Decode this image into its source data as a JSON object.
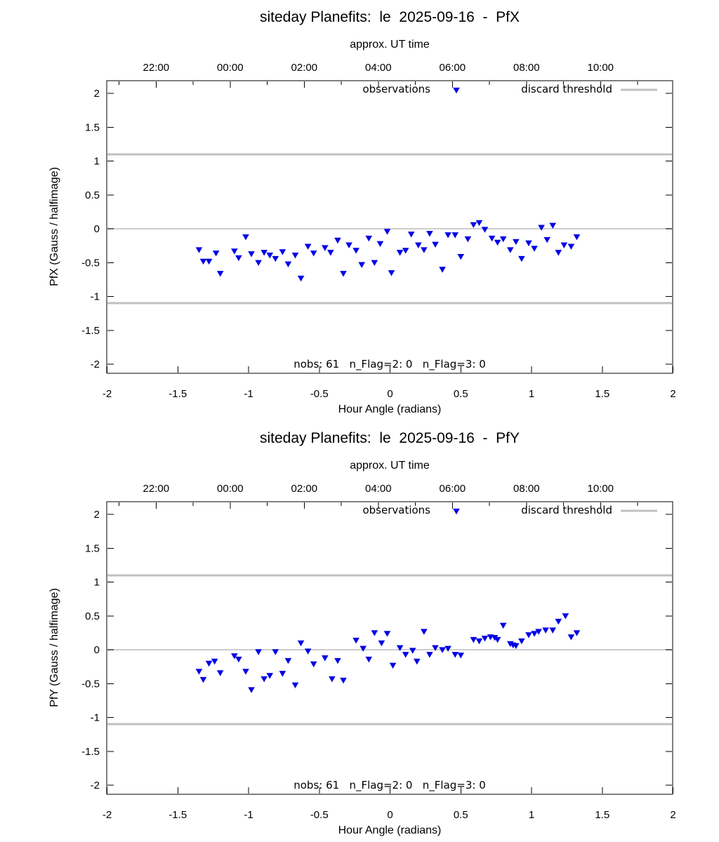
{
  "page": {
    "background": "#ffffff"
  },
  "chart_data": [
    {
      "type": "scatter",
      "title": "siteday Planefits:  le  2025-09-16  -  PfX",
      "x2_axis": {
        "label": "approx. UT time",
        "ticks": [
          {
            "label": "22:00",
            "x": -1.6535
          },
          {
            "label": "00:00",
            "x": -1.1299
          },
          {
            "label": "02:00",
            "x": -0.6064
          },
          {
            "label": "04:00",
            "x": -0.0829
          },
          {
            "label": "06:00",
            "x": 0.4407
          },
          {
            "label": "08:00",
            "x": 0.9642
          },
          {
            "label": "10:00",
            "x": 1.4877
          }
        ],
        "minor_tick_x": [
          -1.9152,
          -1.3917,
          -0.8682,
          -0.3446,
          0.1789,
          0.7024,
          1.226,
          1.7495
        ]
      },
      "x_axis": {
        "label": "Hour Angle (radians)",
        "tick_labels": [
          "-2",
          "-1.5",
          "-1",
          "-0.5",
          "0",
          "0.5",
          "1",
          "1.5",
          "2"
        ],
        "tick_values": [
          -2,
          -1.5,
          -1,
          -0.5,
          0,
          0.5,
          1,
          1.5,
          2
        ],
        "lim": [
          -2,
          2
        ]
      },
      "y_axis": {
        "label": "PfX (Gauss / halfimage)",
        "tick_labels": [
          "2",
          "1.5",
          "1",
          "0.5",
          "0",
          "-0.5",
          "-1",
          "-1.5",
          "-2"
        ],
        "tick_values": [
          2,
          1.5,
          1,
          0.5,
          0,
          -0.5,
          -1,
          -1.5,
          -2
        ],
        "lim": [
          -2.2,
          2.2
        ]
      },
      "grid": false,
      "legend": {
        "observations": "observations",
        "threshold": "discard threshold",
        "position": "top-inside"
      },
      "stats_text": "nobs: 61   n_Flag=2: 0   n_Flag=3: 0",
      "nobs": 61,
      "n_flag2": 0,
      "n_flag3": 0,
      "discard_threshold": 1.1,
      "zero_line": 0,
      "colors": {
        "marker": "#0000e6",
        "threshold_line": "#c0c0c0",
        "zero_line": "#cdcdcd",
        "frame": "#000000"
      },
      "series": [
        {
          "name": "observations",
          "marker": "triangle-down",
          "points": [
            [
              -1.35,
              -0.31
            ],
            [
              -1.32,
              -0.48
            ],
            [
              -1.28,
              -0.48
            ],
            [
              -1.23,
              -0.36
            ],
            [
              -1.2,
              -0.66
            ],
            [
              -1.1,
              -0.33
            ],
            [
              -1.07,
              -0.43
            ],
            [
              -1.02,
              -0.12
            ],
            [
              -0.98,
              -0.37
            ],
            [
              -0.93,
              -0.5
            ],
            [
              -0.89,
              -0.35
            ],
            [
              -0.85,
              -0.39
            ],
            [
              -0.81,
              -0.44
            ],
            [
              -0.76,
              -0.34
            ],
            [
              -0.72,
              -0.52
            ],
            [
              -0.67,
              -0.39
            ],
            [
              -0.63,
              -0.73
            ],
            [
              -0.58,
              -0.26
            ],
            [
              -0.54,
              -0.36
            ],
            [
              -0.46,
              -0.28
            ],
            [
              -0.42,
              -0.35
            ],
            [
              -0.37,
              -0.17
            ],
            [
              -0.33,
              -0.66
            ],
            [
              -0.29,
              -0.24
            ],
            [
              -0.24,
              -0.32
            ],
            [
              -0.2,
              -0.53
            ],
            [
              -0.15,
              -0.14
            ],
            [
              -0.11,
              -0.5
            ],
            [
              -0.07,
              -0.22
            ],
            [
              -0.02,
              -0.04
            ],
            [
              0.01,
              -0.65
            ],
            [
              0.07,
              -0.35
            ],
            [
              0.11,
              -0.32
            ],
            [
              0.15,
              -0.08
            ],
            [
              0.2,
              -0.24
            ],
            [
              0.24,
              -0.31
            ],
            [
              0.28,
              -0.07
            ],
            [
              0.32,
              -0.23
            ],
            [
              0.37,
              -0.6
            ],
            [
              0.41,
              -0.09
            ],
            [
              0.46,
              -0.09
            ],
            [
              0.5,
              -0.41
            ],
            [
              0.55,
              -0.15
            ],
            [
              0.59,
              0.06
            ],
            [
              0.63,
              0.09
            ],
            [
              0.67,
              -0.01
            ],
            [
              0.72,
              -0.14
            ],
            [
              0.76,
              -0.2
            ],
            [
              0.8,
              -0.15
            ],
            [
              0.85,
              -0.31
            ],
            [
              0.89,
              -0.19
            ],
            [
              0.93,
              -0.44
            ],
            [
              0.98,
              -0.21
            ],
            [
              1.02,
              -0.29
            ],
            [
              1.07,
              0.02
            ],
            [
              1.11,
              -0.16
            ],
            [
              1.15,
              0.05
            ],
            [
              1.19,
              -0.35
            ],
            [
              1.23,
              -0.24
            ],
            [
              1.28,
              -0.26
            ],
            [
              1.32,
              -0.12
            ]
          ]
        }
      ]
    },
    {
      "type": "scatter",
      "title": "siteday Planefits:  le  2025-09-16  -  PfY",
      "x2_axis": {
        "label": "approx. UT time",
        "ticks": [
          {
            "label": "22:00",
            "x": -1.6535
          },
          {
            "label": "00:00",
            "x": -1.1299
          },
          {
            "label": "02:00",
            "x": -0.6064
          },
          {
            "label": "04:00",
            "x": -0.0829
          },
          {
            "label": "06:00",
            "x": 0.4407
          },
          {
            "label": "08:00",
            "x": 0.9642
          },
          {
            "label": "10:00",
            "x": 1.4877
          }
        ],
        "minor_tick_x": [
          -1.9152,
          -1.3917,
          -0.8682,
          -0.3446,
          0.1789,
          0.7024,
          1.226,
          1.7495
        ]
      },
      "x_axis": {
        "label": "Hour Angle (radians)",
        "tick_labels": [
          "-2",
          "-1.5",
          "-1",
          "-0.5",
          "0",
          "0.5",
          "1",
          "1.5",
          "2"
        ],
        "tick_values": [
          -2,
          -1.5,
          -1,
          -0.5,
          0,
          0.5,
          1,
          1.5,
          2
        ],
        "lim": [
          -2,
          2
        ]
      },
      "y_axis": {
        "label": "PfY (Gauss / halfimage)",
        "tick_labels": [
          "2",
          "1.5",
          "1",
          "0.5",
          "0",
          "-0.5",
          "-1",
          "-1.5",
          "-2"
        ],
        "tick_values": [
          2,
          1.5,
          1,
          0.5,
          0,
          -0.5,
          -1,
          -1.5,
          -2
        ],
        "lim": [
          -2.2,
          2.2
        ]
      },
      "grid": false,
      "legend": {
        "observations": "observations",
        "threshold": "discard threshold",
        "position": "top-inside"
      },
      "stats_text": "nobs: 61   n_Flag=2: 0   n_Flag=3: 0",
      "nobs": 61,
      "n_flag2": 0,
      "n_flag3": 0,
      "discard_threshold": 1.1,
      "zero_line": 0,
      "colors": {
        "marker": "#0000e6",
        "threshold_line": "#c0c0c0",
        "zero_line": "#cdcdcd",
        "frame": "#000000"
      },
      "series": [
        {
          "name": "observations",
          "marker": "triangle-down",
          "points": [
            [
              -1.35,
              -0.32
            ],
            [
              -1.32,
              -0.44
            ],
            [
              -1.28,
              -0.2
            ],
            [
              -1.24,
              -0.17
            ],
            [
              -1.2,
              -0.34
            ],
            [
              -1.1,
              -0.09
            ],
            [
              -1.07,
              -0.14
            ],
            [
              -1.02,
              -0.32
            ],
            [
              -0.98,
              -0.59
            ],
            [
              -0.93,
              -0.03
            ],
            [
              -0.89,
              -0.43
            ],
            [
              -0.85,
              -0.38
            ],
            [
              -0.81,
              -0.03
            ],
            [
              -0.76,
              -0.35
            ],
            [
              -0.72,
              -0.16
            ],
            [
              -0.67,
              -0.52
            ],
            [
              -0.63,
              0.1
            ],
            [
              -0.58,
              -0.02
            ],
            [
              -0.54,
              -0.21
            ],
            [
              -0.46,
              -0.12
            ],
            [
              -0.41,
              -0.43
            ],
            [
              -0.37,
              -0.16
            ],
            [
              -0.33,
              -0.45
            ],
            [
              -0.24,
              0.14
            ],
            [
              -0.19,
              0.02
            ],
            [
              -0.15,
              -0.14
            ],
            [
              -0.11,
              0.25
            ],
            [
              -0.06,
              0.1
            ],
            [
              -0.02,
              0.24
            ],
            [
              0.02,
              -0.23
            ],
            [
              0.07,
              0.03
            ],
            [
              0.11,
              -0.07
            ],
            [
              0.16,
              -0.01
            ],
            [
              0.19,
              -0.17
            ],
            [
              0.24,
              0.27
            ],
            [
              0.28,
              -0.07
            ],
            [
              0.32,
              0.03
            ],
            [
              0.37,
              0
            ],
            [
              0.41,
              0.02
            ],
            [
              0.46,
              -0.07
            ],
            [
              0.5,
              -0.08
            ],
            [
              0.59,
              0.15
            ],
            [
              0.63,
              0.13
            ],
            [
              0.67,
              0.17
            ],
            [
              0.71,
              0.19
            ],
            [
              0.74,
              0.18
            ],
            [
              0.76,
              0.15
            ],
            [
              0.8,
              0.36
            ],
            [
              0.85,
              0.09
            ],
            [
              0.87,
              0.07
            ],
            [
              0.89,
              0.06
            ],
            [
              0.93,
              0.13
            ],
            [
              0.98,
              0.22
            ],
            [
              1.02,
              0.24
            ],
            [
              1.05,
              0.27
            ],
            [
              1.1,
              0.29
            ],
            [
              1.15,
              0.29
            ],
            [
              1.19,
              0.42
            ],
            [
              1.24,
              0.5
            ],
            [
              1.28,
              0.19
            ],
            [
              1.32,
              0.25
            ]
          ]
        }
      ]
    }
  ]
}
